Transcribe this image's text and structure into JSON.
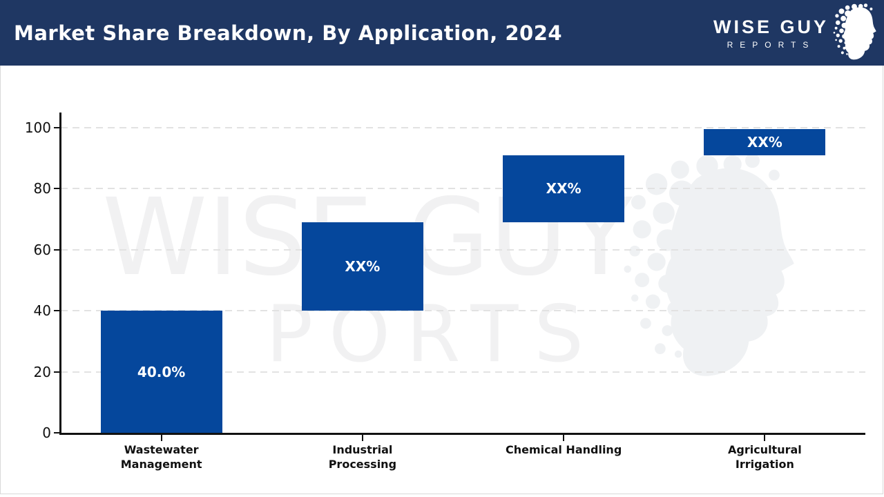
{
  "header": {
    "title": "Market Share Breakdown, By Application, 2024",
    "logo": {
      "line1": "WISE GUY",
      "line2": "REPORTS",
      "face_icon": "dotted-head-profile"
    }
  },
  "watermark": {
    "line1": "WISE GUY",
    "line2": "PORTS",
    "face_icon": "dotted-head-profile"
  },
  "chart_data": {
    "type": "bar",
    "subtype": "floating-waterfall",
    "title": "Market Share Breakdown, By Application, 2024",
    "categories": [
      {
        "lines": [
          "Wastewater",
          "Management"
        ]
      },
      {
        "lines": [
          "Industrial",
          "Processing"
        ]
      },
      {
        "lines": [
          "Chemical Handling"
        ]
      },
      {
        "lines": [
          "Agricultural",
          "Irrigation"
        ]
      }
    ],
    "segments": [
      {
        "category": "Wastewater Management",
        "start": 0,
        "end": 40,
        "label": "40.0%"
      },
      {
        "category": "Industrial Processing",
        "start": 40,
        "end": 69,
        "label": "XX%"
      },
      {
        "category": "Chemical Handling",
        "start": 69,
        "end": 91,
        "label": "XX%"
      },
      {
        "category": "Agricultural Irrigation",
        "start": 91,
        "end": 99.5,
        "label": "XX%"
      }
    ],
    "ylabel": "",
    "xlabel": "",
    "yticks": [
      0,
      20,
      40,
      60,
      80,
      100
    ],
    "ylim": [
      0,
      105
    ],
    "grid": "dashed-horizontal",
    "legend": "none"
  },
  "colors": {
    "header_bg": "#1f3763",
    "bar": "#05479c",
    "grid": "#e2e2e2",
    "axis": "#111111",
    "tick_text": "#111111",
    "bar_label": "#ffffff",
    "watermark": "#f1f1f2",
    "watermark_face": "#eff1f3",
    "card_border": "#d9d9d9",
    "logo_text": "#ffffff"
  }
}
